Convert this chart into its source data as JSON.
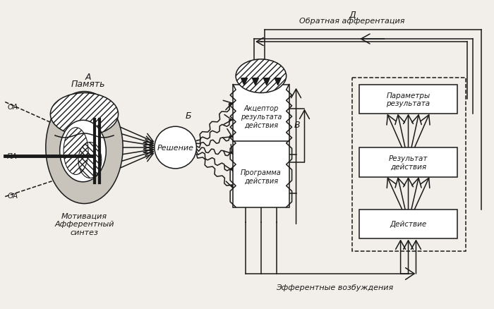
{
  "bg": "#f2efea",
  "lc": "#1a1a1a",
  "label_A": "А",
  "label_B": "Б",
  "label_V": "В",
  "label_D": "Д",
  "text_pamyat": "Память",
  "text_reshenie": "Решение",
  "text_motivaciya": "Мотивация\nАфферентный\nсинтез",
  "text_akceptor": "Акцептор\nрезультата\nдействия",
  "text_programma": "Программа\nдействия",
  "text_obr_aff": "Обратная афферентация",
  "text_eff_vozb": "Эфферентные возбуждения",
  "text_param": "Параметры\nрезультата",
  "text_rezult": "Результат\nдействия",
  "text_deystvie": "Действие",
  "text_OA_top": "ОА",
  "text_PA": "ПА",
  "text_OA_bot": "ОА"
}
